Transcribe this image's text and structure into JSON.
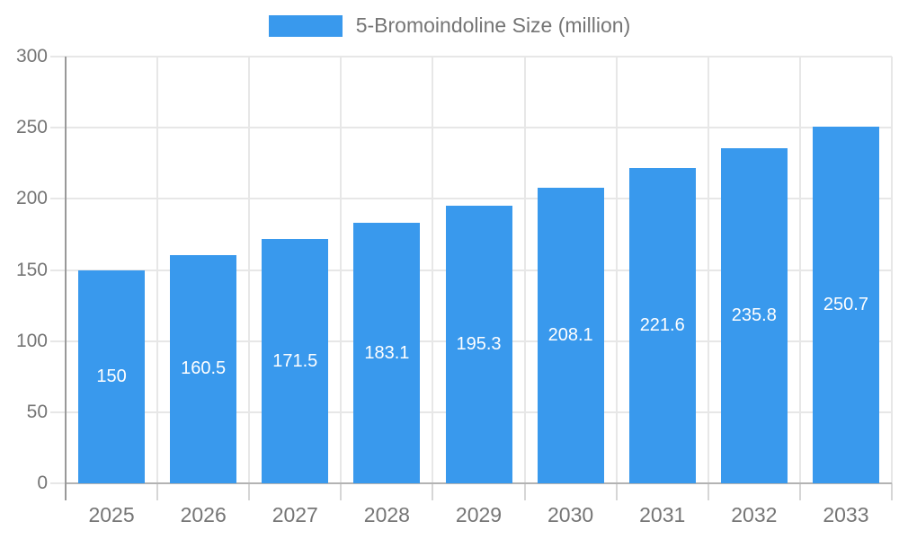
{
  "legend": {
    "label": "5-Bromoindoline Size (million)"
  },
  "colors": {
    "bar": "#3999ED",
    "bar_label_text": "#ffffff",
    "axis_line": "#999999",
    "baseline": "#b3b3b3",
    "grid_line": "#e7e7e7",
    "tick_mark": "#d6d6d6",
    "axis_label_text": "#757575",
    "legend_text": "#757575",
    "page_bg": "#ffffff"
  },
  "chart_data": {
    "type": "bar",
    "title": "5-Bromoindoline Size (million)",
    "categories": [
      "2025",
      "2026",
      "2027",
      "2028",
      "2029",
      "2030",
      "2031",
      "2032",
      "2033"
    ],
    "series": [
      {
        "name": "5-Bromoindoline Size (million)",
        "values": [
          150,
          160.5,
          171.5,
          183.1,
          195.3,
          208.1,
          221.6,
          235.8,
          250.7
        ]
      }
    ],
    "data_labels": [
      "150",
      "160.5",
      "171.5",
      "183.1",
      "195.3",
      "208.1",
      "221.6",
      "235.8",
      "250.7"
    ],
    "xlabel": "",
    "ylabel": "",
    "ylim": [
      0,
      300
    ],
    "yticks": [
      0,
      50,
      100,
      150,
      200,
      250,
      300
    ],
    "grid": true,
    "legend_position": "top-center",
    "bar_label_position": "inside-center"
  }
}
